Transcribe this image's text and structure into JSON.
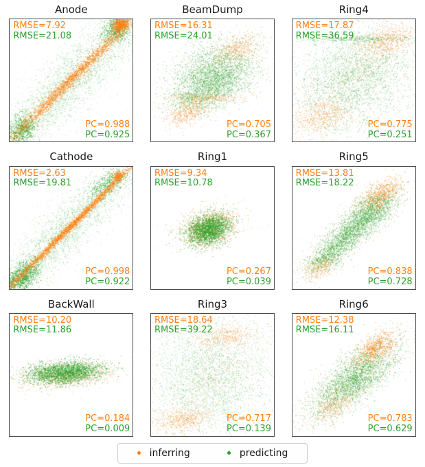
{
  "legend": {
    "items": [
      {
        "label": "inferring",
        "color": "#ff7f0e"
      },
      {
        "label": "predicting",
        "color": "#2ca02c"
      }
    ]
  },
  "chart_data": {
    "type": "scatter",
    "layout": "3x3 grid of square subplots, no axis ticks or tick labels, legend centered below grid",
    "series_names": [
      "inferring",
      "predicting"
    ],
    "colors": {
      "inferring": "#ff7f0e",
      "predicting": "#2ca02c"
    },
    "axes": {
      "ticks_visible": false,
      "coords": "normalized 0-1, y up"
    },
    "subplots": [
      {
        "title": "Anode",
        "metrics": {
          "rmse_inferring": 7.92,
          "rmse_predicting": 21.08,
          "pc_inferring": 0.988,
          "pc_predicting": 0.925
        },
        "annotations": {
          "rmse_inferring": "RMSE=7.92",
          "rmse_predicting": "RMSE=21.08",
          "pc_inferring": "PC=0.988",
          "pc_predicting": "PC=0.925"
        },
        "clusters": [
          {
            "s": "predicting",
            "n": 900,
            "cx": 0.5,
            "cy": 0.5,
            "rx": 0.5,
            "ry": 0.2,
            "rot": 45,
            "a": 0.15
          },
          {
            "s": "predicting",
            "n": 2600,
            "cx": 0.5,
            "cy": 0.5,
            "rx": 0.44,
            "ry": 0.1,
            "rot": 45,
            "a": 0.4
          },
          {
            "s": "predicting",
            "n": 700,
            "cx": 0.1,
            "cy": 0.1,
            "rx": 0.07,
            "ry": 0.05,
            "rot": 45,
            "a": 0.8
          },
          {
            "s": "predicting",
            "n": 600,
            "cx": 0.87,
            "cy": 0.92,
            "rx": 0.06,
            "ry": 0.05,
            "rot": 45,
            "a": 0.8
          },
          {
            "s": "inferring",
            "n": 300,
            "cx": 0.5,
            "cy": 0.5,
            "rx": 0.45,
            "ry": 0.06,
            "rot": 45,
            "a": 0.25
          },
          {
            "s": "inferring",
            "n": 2200,
            "cx": 0.5,
            "cy": 0.51,
            "rx": 0.43,
            "ry": 0.022,
            "rot": 45,
            "a": 0.8
          },
          {
            "s": "inferring",
            "n": 500,
            "cx": 0.9,
            "cy": 0.96,
            "rx": 0.03,
            "ry": 0.028,
            "rot": 0,
            "a": 0.9
          }
        ]
      },
      {
        "title": "BeamDump",
        "metrics": {
          "rmse_inferring": 16.31,
          "rmse_predicting": 24.01,
          "pc_inferring": 0.705,
          "pc_predicting": 0.367
        },
        "annotations": {
          "rmse_inferring": "RMSE=16.31",
          "rmse_predicting": "RMSE=24.01",
          "pc_inferring": "PC=0.705",
          "pc_predicting": "PC=0.367"
        },
        "clusters": [
          {
            "s": "predicting",
            "n": 500,
            "cx": 0.5,
            "cy": 0.52,
            "rx": 0.3,
            "ry": 0.2,
            "rot": 28,
            "a": 0.15
          },
          {
            "s": "inferring",
            "n": 450,
            "cx": 0.52,
            "cy": 0.55,
            "rx": 0.27,
            "ry": 0.17,
            "rot": 28,
            "a": 0.3
          },
          {
            "s": "predicting",
            "n": 2400,
            "cx": 0.53,
            "cy": 0.56,
            "rx": 0.18,
            "ry": 0.12,
            "rot": 28,
            "a": 0.55
          },
          {
            "s": "predicting",
            "n": 1100,
            "cx": 0.42,
            "cy": 0.4,
            "rx": 0.15,
            "ry": 0.07,
            "rot": 20,
            "a": 0.5
          },
          {
            "s": "inferring",
            "n": 400,
            "cx": 0.29,
            "cy": 0.24,
            "rx": 0.09,
            "ry": 0.05,
            "rot": 25,
            "a": 0.6
          },
          {
            "s": "inferring",
            "n": 350,
            "cx": 0.7,
            "cy": 0.76,
            "rx": 0.09,
            "ry": 0.05,
            "rot": 20,
            "a": 0.6
          },
          {
            "s": "inferring",
            "n": 250,
            "cx": 0.44,
            "cy": 0.36,
            "rx": 0.16,
            "ry": 0.018,
            "rot": 0,
            "a": 0.5
          }
        ]
      },
      {
        "title": "Ring4",
        "metrics": {
          "rmse_inferring": 17.87,
          "rmse_predicting": 36.59,
          "pc_inferring": 0.775,
          "pc_predicting": 0.251
        },
        "annotations": {
          "rmse_inferring": "RMSE=17.87",
          "rmse_predicting": "RMSE=36.59",
          "pc_inferring": "PC=0.775",
          "pc_predicting": "PC=0.251"
        },
        "clusters": [
          {
            "s": "predicting",
            "n": 900,
            "cx": 0.5,
            "cy": 0.5,
            "rx": 0.36,
            "ry": 0.3,
            "rot": 30,
            "a": 0.12
          },
          {
            "s": "predicting",
            "n": 3000,
            "cx": 0.5,
            "cy": 0.52,
            "rx": 0.26,
            "ry": 0.2,
            "rot": 30,
            "a": 0.45
          },
          {
            "s": "predicting",
            "n": 400,
            "cx": 0.55,
            "cy": 0.84,
            "rx": 0.25,
            "ry": 0.015,
            "rot": 0,
            "a": 0.5
          },
          {
            "s": "inferring",
            "n": 550,
            "cx": 0.76,
            "cy": 0.82,
            "rx": 0.13,
            "ry": 0.06,
            "rot": 22,
            "a": 0.55
          },
          {
            "s": "inferring",
            "n": 550,
            "cx": 0.24,
            "cy": 0.2,
            "rx": 0.13,
            "ry": 0.07,
            "rot": 18,
            "a": 0.55
          },
          {
            "s": "inferring",
            "n": 350,
            "cx": 0.52,
            "cy": 0.52,
            "rx": 0.22,
            "ry": 0.1,
            "rot": 30,
            "a": 0.3
          }
        ]
      },
      {
        "title": "Cathode",
        "metrics": {
          "rmse_inferring": 2.63,
          "rmse_predicting": 19.81,
          "pc_inferring": 0.998,
          "pc_predicting": 0.922
        },
        "annotations": {
          "rmse_inferring": "RMSE=2.63",
          "rmse_predicting": "RMSE=19.81",
          "pc_inferring": "PC=0.998",
          "pc_predicting": "PC=0.922"
        },
        "clusters": [
          {
            "s": "predicting",
            "n": 800,
            "cx": 0.45,
            "cy": 0.48,
            "rx": 0.42,
            "ry": 0.16,
            "rot": 45,
            "a": 0.15
          },
          {
            "s": "predicting",
            "n": 2200,
            "cx": 0.45,
            "cy": 0.47,
            "rx": 0.4,
            "ry": 0.09,
            "rot": 45,
            "a": 0.4
          },
          {
            "s": "predicting",
            "n": 1000,
            "cx": 0.1,
            "cy": 0.1,
            "rx": 0.09,
            "ry": 0.045,
            "rot": 42,
            "a": 0.85
          },
          {
            "s": "predicting",
            "n": 500,
            "cx": 0.8,
            "cy": 0.86,
            "rx": 0.09,
            "ry": 0.04,
            "rot": 35,
            "a": 0.7
          },
          {
            "s": "inferring",
            "n": 2400,
            "cx": 0.48,
            "cy": 0.5,
            "rx": 0.4,
            "ry": 0.014,
            "rot": 45,
            "a": 0.85
          },
          {
            "s": "inferring",
            "n": 200,
            "cx": 0.88,
            "cy": 0.93,
            "rx": 0.02,
            "ry": 0.02,
            "rot": 0,
            "a": 0.9
          }
        ]
      },
      {
        "title": "Ring1",
        "metrics": {
          "rmse_inferring": 9.34,
          "rmse_predicting": 10.78,
          "pc_inferring": 0.267,
          "pc_predicting": 0.039
        },
        "annotations": {
          "rmse_inferring": "RMSE=9.34",
          "rmse_predicting": "RMSE=10.78",
          "pc_inferring": "PC=0.267",
          "pc_predicting": "PC=0.039"
        },
        "clusters": [
          {
            "s": "inferring",
            "n": 140,
            "cx": 0.46,
            "cy": 0.5,
            "rx": 0.3,
            "ry": 0.025,
            "rot": 0,
            "a": 0.2
          },
          {
            "s": "predicting",
            "n": 120,
            "cx": 0.46,
            "cy": 0.5,
            "rx": 0.33,
            "ry": 0.02,
            "rot": 0,
            "a": 0.15
          },
          {
            "s": "inferring",
            "n": 1000,
            "cx": 0.47,
            "cy": 0.5,
            "rx": 0.115,
            "ry": 0.075,
            "rot": 20,
            "a": 0.7
          },
          {
            "s": "predicting",
            "n": 2200,
            "cx": 0.465,
            "cy": 0.49,
            "rx": 0.09,
            "ry": 0.058,
            "rot": 20,
            "a": 0.8
          }
        ]
      },
      {
        "title": "Ring5",
        "metrics": {
          "rmse_inferring": 13.81,
          "rmse_predicting": 18.22,
          "pc_inferring": 0.838,
          "pc_predicting": 0.728
        },
        "annotations": {
          "rmse_inferring": "RMSE=13.81",
          "rmse_predicting": "RMSE=18.22",
          "pc_inferring": "PC=0.838",
          "pc_predicting": "PC=0.728"
        },
        "clusters": [
          {
            "s": "predicting",
            "n": 300,
            "cx": 0.48,
            "cy": 0.48,
            "rx": 0.3,
            "ry": 0.12,
            "rot": 40,
            "a": 0.12
          },
          {
            "s": "inferring",
            "n": 400,
            "cx": 0.45,
            "cy": 0.45,
            "rx": 0.28,
            "ry": 0.08,
            "rot": 42,
            "a": 0.35
          },
          {
            "s": "predicting",
            "n": 700,
            "cx": 0.27,
            "cy": 0.26,
            "rx": 0.1,
            "ry": 0.05,
            "rot": 35,
            "a": 0.6
          },
          {
            "s": "predicting",
            "n": 800,
            "cx": 0.42,
            "cy": 0.42,
            "rx": 0.11,
            "ry": 0.055,
            "rot": 35,
            "a": 0.6
          },
          {
            "s": "predicting",
            "n": 900,
            "cx": 0.56,
            "cy": 0.56,
            "rx": 0.12,
            "ry": 0.06,
            "rot": 35,
            "a": 0.6
          },
          {
            "s": "predicting",
            "n": 900,
            "cx": 0.67,
            "cy": 0.67,
            "rx": 0.12,
            "ry": 0.06,
            "rot": 35,
            "a": 0.6
          },
          {
            "s": "inferring",
            "n": 550,
            "cx": 0.72,
            "cy": 0.78,
            "rx": 0.1,
            "ry": 0.05,
            "rot": 30,
            "a": 0.7
          },
          {
            "s": "inferring",
            "n": 250,
            "cx": 0.22,
            "cy": 0.17,
            "rx": 0.07,
            "ry": 0.04,
            "rot": 30,
            "a": 0.5
          }
        ]
      },
      {
        "title": "BackWall",
        "metrics": {
          "rmse_inferring": 10.2,
          "rmse_predicting": 11.86,
          "pc_inferring": 0.184,
          "pc_predicting": 0.009
        },
        "annotations": {
          "rmse_inferring": "RMSE=10.20",
          "rmse_predicting": "RMSE=11.86",
          "pc_inferring": "PC=0.184",
          "pc_predicting": "PC=0.009"
        },
        "clusters": [
          {
            "s": "inferring",
            "n": 130,
            "cx": 0.45,
            "cy": 0.51,
            "rx": 0.34,
            "ry": 0.015,
            "rot": 0,
            "a": 0.25
          },
          {
            "s": "inferring",
            "n": 800,
            "cx": 0.45,
            "cy": 0.5,
            "rx": 0.2,
            "ry": 0.055,
            "rot": 4,
            "a": 0.55
          },
          {
            "s": "predicting",
            "n": 2400,
            "cx": 0.45,
            "cy": 0.52,
            "rx": 0.155,
            "ry": 0.045,
            "rot": 4,
            "a": 0.8
          }
        ]
      },
      {
        "title": "Ring3",
        "metrics": {
          "rmse_inferring": 18.64,
          "rmse_predicting": 39.22,
          "pc_inferring": 0.717,
          "pc_predicting": 0.139
        },
        "annotations": {
          "rmse_inferring": "RMSE=18.64",
          "rmse_predicting": "RMSE=39.22",
          "pc_inferring": "PC=0.717",
          "pc_predicting": "PC=0.139"
        },
        "clusters": [
          {
            "s": "predicting",
            "n": 900,
            "cx": 0.47,
            "cy": 0.47,
            "rx": 0.36,
            "ry": 0.32,
            "rot": 35,
            "a": 0.12
          },
          {
            "s": "predicting",
            "n": 3000,
            "cx": 0.47,
            "cy": 0.48,
            "rx": 0.27,
            "ry": 0.24,
            "rot": 35,
            "a": 0.4
          },
          {
            "s": "inferring",
            "n": 500,
            "cx": 0.26,
            "cy": 0.14,
            "rx": 0.13,
            "ry": 0.05,
            "rot": 12,
            "a": 0.55
          },
          {
            "s": "inferring",
            "n": 400,
            "cx": 0.6,
            "cy": 0.82,
            "rx": 0.13,
            "ry": 0.045,
            "rot": 8,
            "a": 0.5
          },
          {
            "s": "inferring",
            "n": 400,
            "cx": 0.5,
            "cy": 0.5,
            "rx": 0.22,
            "ry": 0.12,
            "rot": 40,
            "a": 0.3
          }
        ]
      },
      {
        "title": "Ring6",
        "metrics": {
          "rmse_inferring": 12.38,
          "rmse_predicting": 16.11,
          "pc_inferring": 0.783,
          "pc_predicting": 0.629
        },
        "annotations": {
          "rmse_inferring": "RMSE=12.38",
          "rmse_predicting": "RMSE=16.11",
          "pc_inferring": "PC=0.783",
          "pc_predicting": "PC=0.629"
        },
        "clusters": [
          {
            "s": "predicting",
            "n": 450,
            "cx": 0.5,
            "cy": 0.48,
            "rx": 0.3,
            "ry": 0.14,
            "rot": 40,
            "a": 0.12
          },
          {
            "s": "inferring",
            "n": 550,
            "cx": 0.46,
            "cy": 0.42,
            "rx": 0.24,
            "ry": 0.1,
            "rot": 40,
            "a": 0.35
          },
          {
            "s": "predicting",
            "n": 2600,
            "cx": 0.5,
            "cy": 0.47,
            "rx": 0.22,
            "ry": 0.085,
            "rot": 40,
            "a": 0.6
          },
          {
            "s": "inferring",
            "n": 650,
            "cx": 0.67,
            "cy": 0.72,
            "rx": 0.1,
            "ry": 0.05,
            "rot": 35,
            "a": 0.75
          },
          {
            "s": "inferring",
            "n": 300,
            "cx": 0.33,
            "cy": 0.25,
            "rx": 0.09,
            "ry": 0.05,
            "rot": 35,
            "a": 0.5
          }
        ]
      }
    ]
  }
}
